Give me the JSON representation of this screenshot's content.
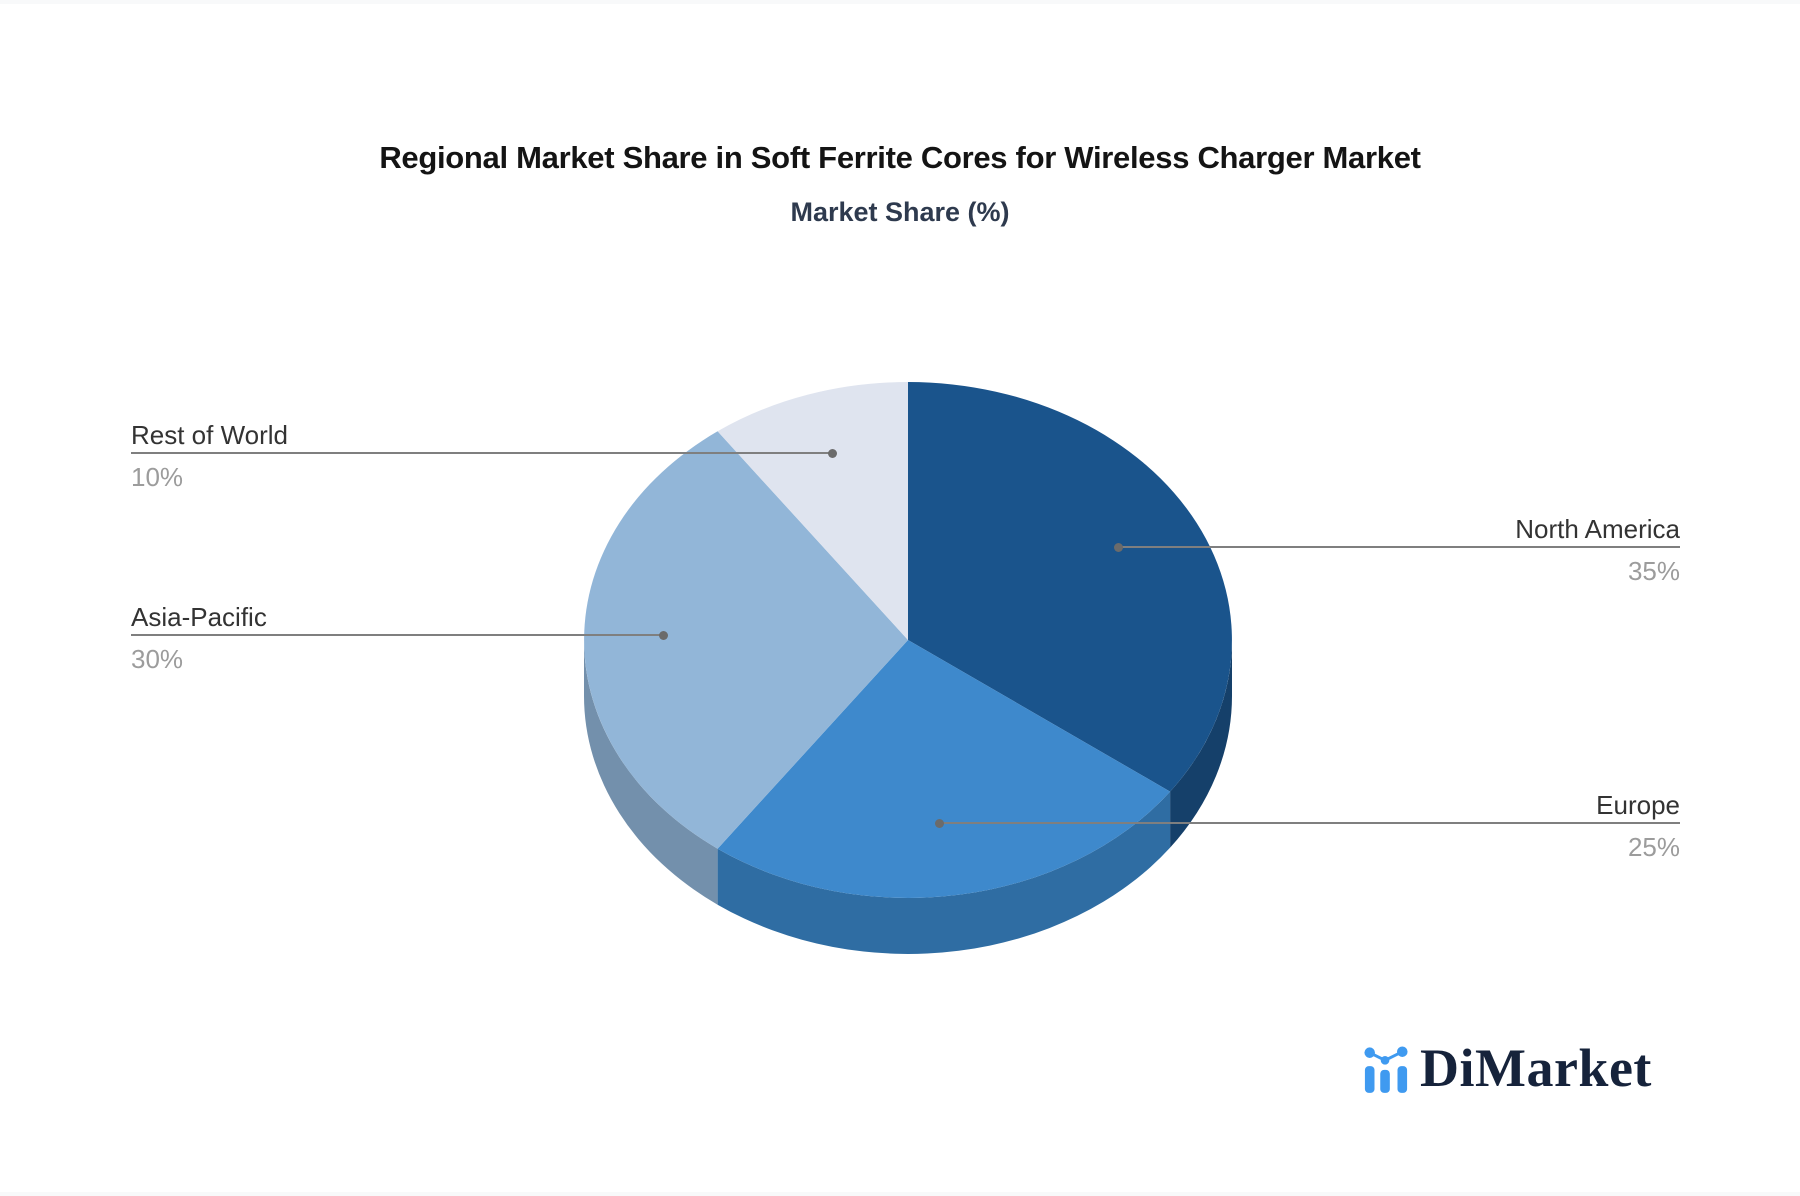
{
  "chart_data": {
    "type": "pie",
    "title": "Regional Market Share in Soft Ferrite Cores for Wireless Charger Market",
    "subtitle": "Market Share (%)",
    "unit": "%",
    "effect": "3d",
    "start_angle_deg": 0,
    "direction": "clockwise",
    "legend_position": "none",
    "labels_layout": "callout-lines",
    "slices": [
      {
        "label": "North America",
        "value": 35,
        "display": "35%",
        "color": "#1A548C",
        "side_color": "#15406A"
      },
      {
        "label": "Europe",
        "value": 25,
        "display": "25%",
        "color": "#3E89CC",
        "side_color": "#2F6DA3"
      },
      {
        "label": "Asia-Pacific",
        "value": 30,
        "display": "30%",
        "color": "#92B6D8",
        "side_color": "#7390AC"
      },
      {
        "label": "Rest of World",
        "value": 10,
        "display": "10%",
        "color": "#DFE4EF",
        "side_color": "#A9B4C6"
      }
    ]
  },
  "watermark": {
    "text": "DiMarket",
    "icon": "bar-chart-icon",
    "text_color": "#16233B",
    "icon_color": "#3F9AF0"
  },
  "styles": {
    "background": "#FFFFFF",
    "edge_strip": "#F8F9FA",
    "title_color": "#141414",
    "subtitle_color": "#2E3A4E",
    "label_color": "#333333",
    "value_color": "#9C9C9C",
    "leader_line_color": "#7F7F7F"
  }
}
